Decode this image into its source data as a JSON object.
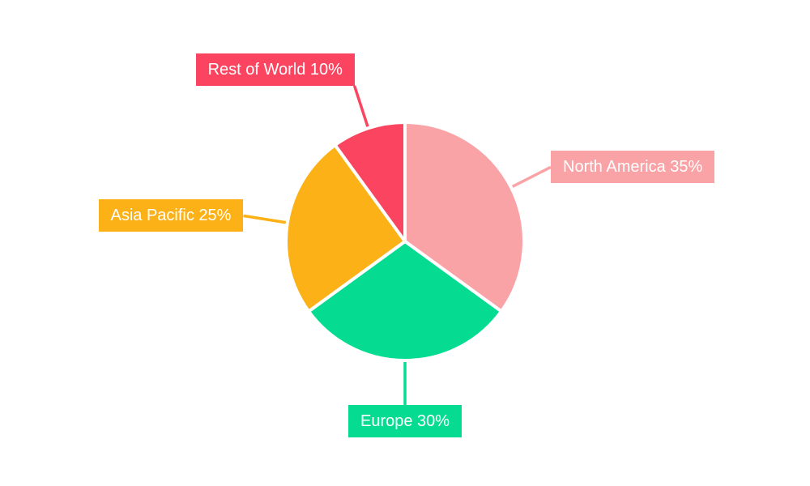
{
  "chart_data": {
    "type": "pie",
    "title": "",
    "legend_position": "none",
    "grid": false,
    "background": "#ffffff",
    "label_text_color": "#ffffff",
    "start_angle_deg": 0,
    "direction": "clockwise",
    "slices": [
      {
        "name": "North America",
        "value": 35,
        "label": "North America 35%",
        "color": "#F9A3A7"
      },
      {
        "name": "Europe",
        "value": 30,
        "label": "Europe 30%",
        "color": "#05DC92"
      },
      {
        "name": "Asia Pacific",
        "value": 25,
        "label": "Asia Pacific 25%",
        "color": "#FCB116"
      },
      {
        "name": "Rest of World",
        "value": 10,
        "label": "Rest of World 10%",
        "color": "#FB4560"
      }
    ]
  }
}
